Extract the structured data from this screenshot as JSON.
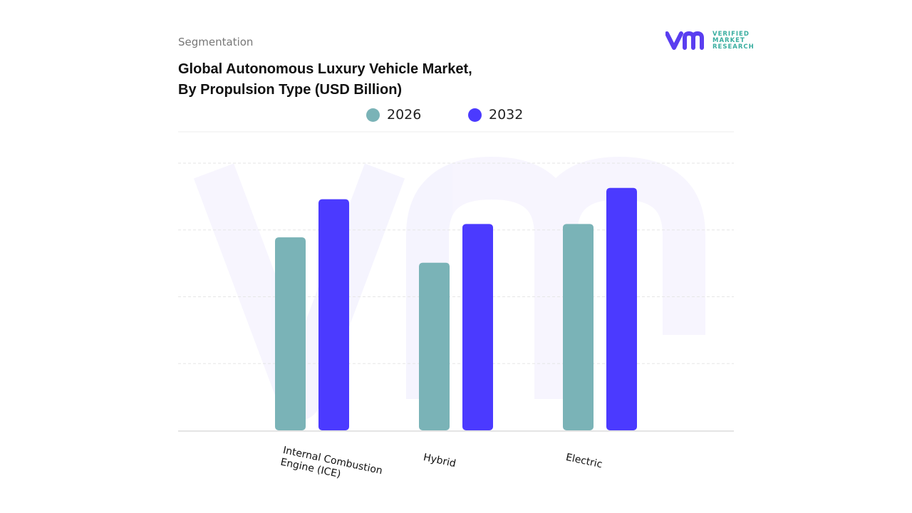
{
  "header": {
    "segment_label": "Segmentation",
    "title_line1": "Global Autonomous Luxury Vehicle Market,",
    "title_line2": "By Propulsion Type (USD Billion)"
  },
  "logo": {
    "line1": "VERIFIED",
    "line2": "MARKET",
    "line3": "RESEARCH",
    "brand_text": "vmr"
  },
  "colors": {
    "2026": "#7ab3b7",
    "2032": "#4b3aff",
    "grid": "#e2e2e2",
    "brand": "#5a3ef0",
    "brand_accent": "#3aaea0"
  },
  "chart_data": {
    "type": "bar",
    "title": "Global Autonomous Luxury Vehicle Market, By Propulsion Type (USD Billion)",
    "categories": [
      "Internal Combustion Engine (ICE)",
      "Hybrid",
      "Electric"
    ],
    "category_labels": [
      "Internal Combustion\nEngine (ICE)",
      "Hybrid",
      "Electric"
    ],
    "series": [
      {
        "name": "2026",
        "values": [
          2.89,
          2.51,
          3.09
        ]
      },
      {
        "name": "2032",
        "values": [
          3.46,
          3.09,
          3.63
        ]
      }
    ],
    "ylim": [
      0,
      4
    ],
    "y_ticks_shown": false,
    "grid": true,
    "legend": "top-center",
    "xlabel": "",
    "ylabel": ""
  }
}
